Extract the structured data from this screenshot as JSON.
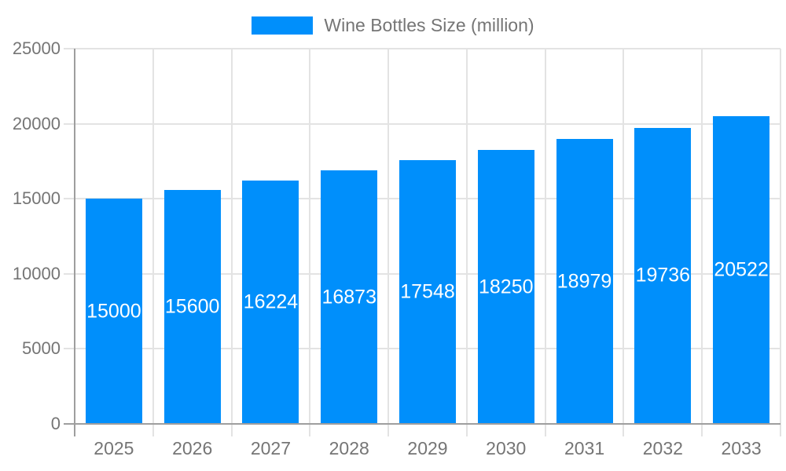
{
  "chart_data": {
    "type": "bar",
    "title": "",
    "legend": {
      "label": "Wine Bottles Size (million)",
      "position": "top"
    },
    "categories": [
      "2025",
      "2026",
      "2027",
      "2028",
      "2029",
      "2030",
      "2031",
      "2032",
      "2033"
    ],
    "series": [
      {
        "name": "Wine Bottles Size (million)",
        "values": [
          15000,
          15600,
          16224,
          16873,
          17548,
          18250,
          18979,
          19736,
          20522
        ]
      }
    ],
    "data_labels": [
      "15000",
      "15600",
      "16224",
      "16873",
      "17548",
      "18250",
      "18979",
      "19736",
      "20522"
    ],
    "xlabel": "",
    "ylabel": "",
    "ylim": [
      0,
      25000
    ],
    "yticks": [
      0,
      5000,
      10000,
      15000,
      20000,
      25000
    ],
    "ytick_labels": [
      "0",
      "5000",
      "10000",
      "15000",
      "20000",
      "25000"
    ],
    "grid": true,
    "colors": {
      "bar": "#008FFB",
      "axis_line": "#9e9e9e",
      "gridline": "#e3e3e3",
      "axis_text": "#757575",
      "data_label_text": "#ffffff",
      "background": "#ffffff"
    }
  }
}
